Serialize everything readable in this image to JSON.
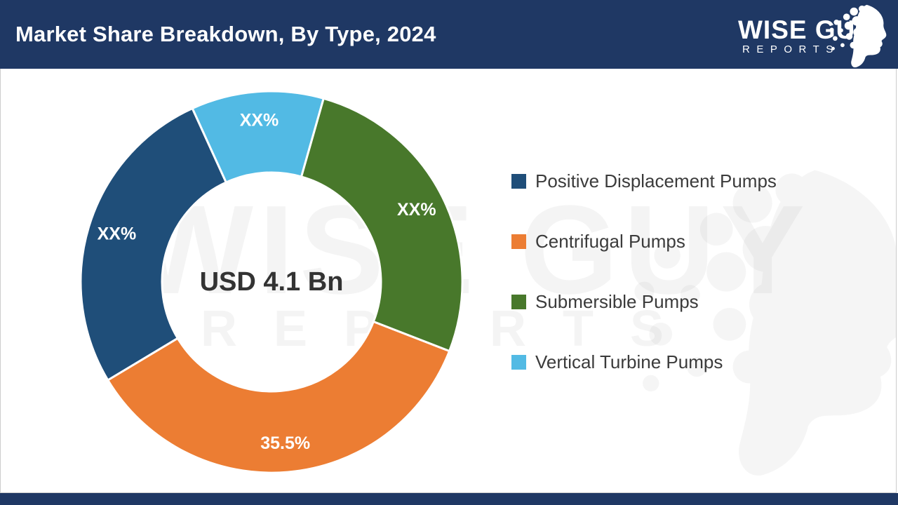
{
  "header": {
    "title": "Market Share Breakdown, By Type, 2024"
  },
  "logo": {
    "line1": "WISE GUY",
    "line2": "REPORTS"
  },
  "watermark": {
    "line1": "WISE GUY",
    "line2": "REPORTS"
  },
  "chart_data": {
    "type": "donut",
    "title": "Market Share Breakdown, By Type, 2024",
    "center_label": "USD 4.1 Bn",
    "start_angle_deg": 335.5,
    "direction": "counterclockwise",
    "legend_position": "right",
    "gap_color": "#ffffff",
    "series": [
      {
        "name": "Positive Displacement Pumps",
        "display_label": "XX%",
        "value_pct": 26.8,
        "color": "#1F4E79"
      },
      {
        "name": "Centrifugal Pumps",
        "display_label": "35.5%",
        "value_pct": 35.5,
        "color": "#EC7D33"
      },
      {
        "name": "Submersible Pumps",
        "display_label": "XX%",
        "value_pct": 26.5,
        "color": "#48782B"
      },
      {
        "name": "Vertical Turbine Pumps",
        "display_label": "XX%",
        "value_pct": 11.2,
        "color": "#52BAE4"
      }
    ]
  }
}
